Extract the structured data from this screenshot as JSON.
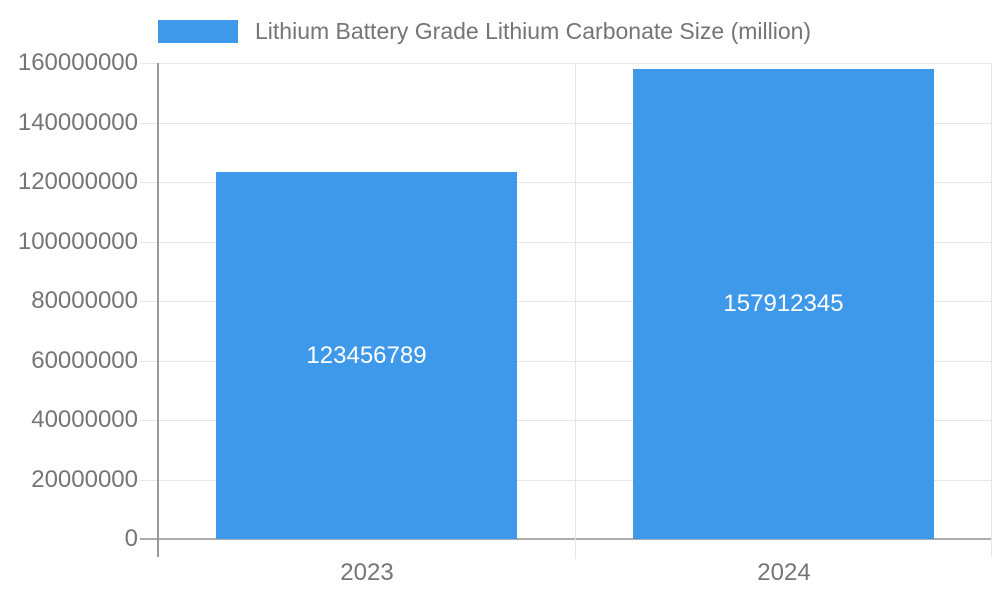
{
  "chart_data": {
    "type": "bar",
    "title": "Lithium Battery Grade Lithium Carbonate Size (million)",
    "legend": {
      "position": "top",
      "entries": [
        "Lithium Battery Grade Lithium Carbonate Size (million)"
      ]
    },
    "categories": [
      "2023",
      "2024"
    ],
    "series": [
      {
        "name": "Lithium Battery Grade Lithium Carbonate Size (million)",
        "values": [
          123456789,
          157912345
        ]
      }
    ],
    "data_labels": [
      "123456789",
      "157912345"
    ],
    "xlabel": "",
    "ylabel": "",
    "ylim": [
      0,
      160000000
    ],
    "ytick_interval": 20000000,
    "ytick_labels": [
      "0",
      "20000000",
      "40000000",
      "60000000",
      "80000000",
      "100000000",
      "120000000",
      "140000000",
      "160000000"
    ],
    "grid": true,
    "colors": {
      "bar": "#3E99EB",
      "axis_text": "#757575",
      "data_label": "#FFFFFF",
      "gridline": "#E6E6E6",
      "axis_line": "#999999",
      "baseline": "#ABABAB",
      "background": "#FFFFFF"
    }
  }
}
